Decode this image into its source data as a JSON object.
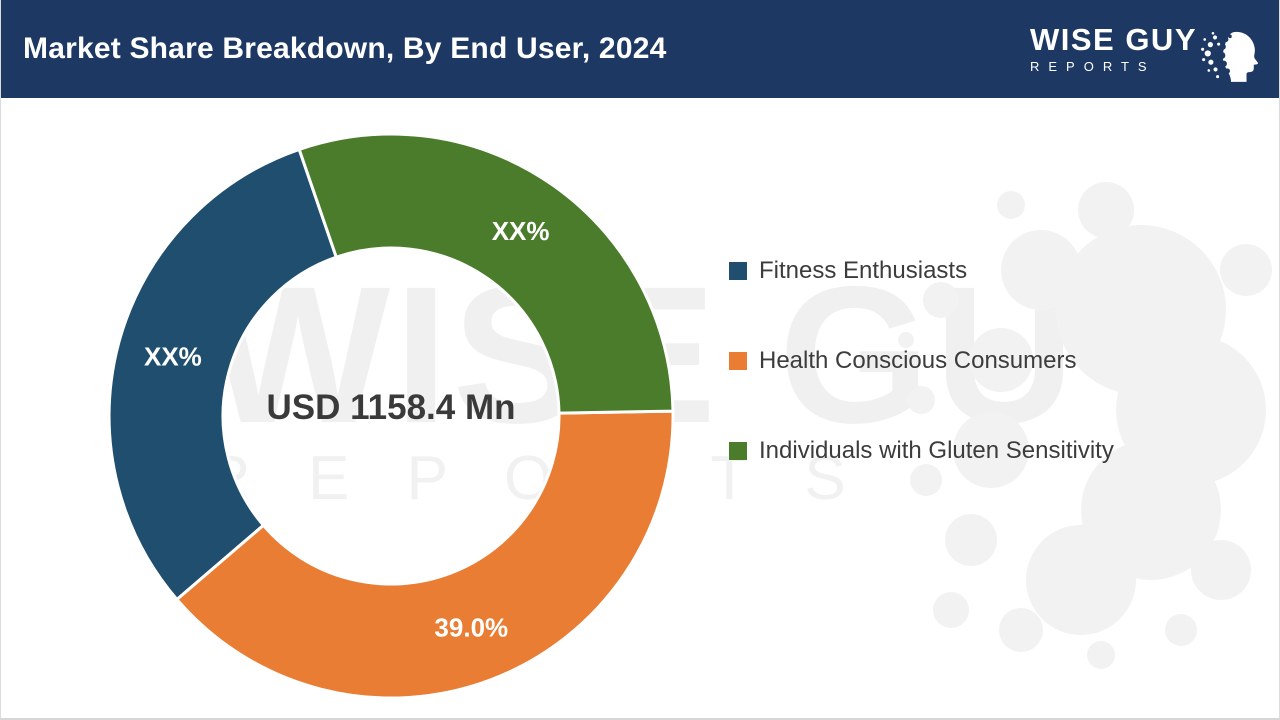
{
  "header": {
    "title": "Market Share Breakdown, By End User, 2024",
    "bg_color": "#1e3864",
    "logo": {
      "line1": "WISE GUY",
      "line2": "REPORTS"
    }
  },
  "watermark": {
    "line1": "WISE GUY",
    "line2": "R E P O R T S"
  },
  "chart_data": {
    "type": "pie",
    "subtype": "donut",
    "title": "Market Share Breakdown, By End User, 2024",
    "center_label": "USD 1158.4 Mn",
    "legend_position": "right",
    "labels_color": "#ffffff",
    "angles_note": "degrees clockwise from 12 o'clock",
    "segments": [
      {
        "name": "Fitness Enthusiasts",
        "color": "#1f4e6e",
        "share_label": "XX%",
        "value_pct": null,
        "start_deg": 229.4,
        "end_deg": 341.0
      },
      {
        "name": "Health Conscious Consumers",
        "color": "#e87d33",
        "share_label": "39.0%",
        "value_pct": 39.0,
        "start_deg": 89.0,
        "end_deg": 229.4
      },
      {
        "name": "Individuals with Gluten Sensitivity",
        "color": "#4a7c2b",
        "share_label": "XX%",
        "value_pct": null,
        "start_deg": -19.0,
        "end_deg": 89.0
      }
    ]
  }
}
